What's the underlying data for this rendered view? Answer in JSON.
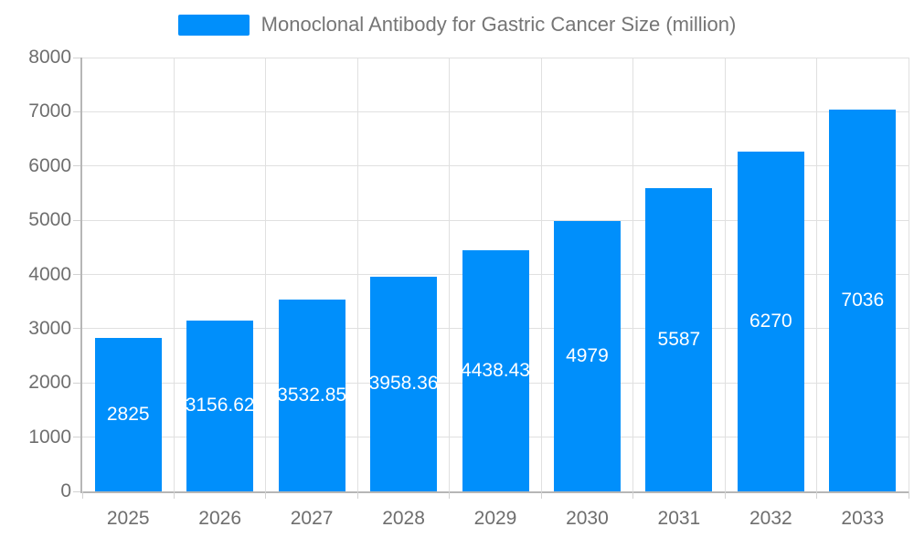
{
  "legend": {
    "label": "Monoclonal Antibody for Gastric Cancer Size (million)"
  },
  "colors": {
    "bar": "#008FFB",
    "grid": "#e0e0e0",
    "axis_line": "#b6b6b6",
    "tick": "#d2d2d2",
    "axis_label": "#6e6e6e",
    "legend_text": "#757575",
    "bar_label": "#ffffff",
    "background": "#ffffff"
  },
  "chart_data": {
    "type": "bar",
    "title": "Monoclonal Antibody for Gastric Cancer Size (million)",
    "categories": [
      "2025",
      "2026",
      "2027",
      "2028",
      "2029",
      "2030",
      "2031",
      "2032",
      "2033"
    ],
    "values": [
      2825,
      3156.62,
      3532.85,
      3958.36,
      4438.43,
      4979,
      5587,
      6270,
      7036
    ],
    "bar_labels": [
      "2825",
      "3156.62",
      "3532.85",
      "3958.36",
      "4438.43",
      "4979",
      "5587",
      "6270",
      "7036"
    ],
    "xlabel": "",
    "ylabel": "",
    "ylim": [
      0,
      8000
    ],
    "ytick_step": 1000,
    "ytick_labels": [
      "0",
      "1000",
      "2000",
      "3000",
      "4000",
      "5000",
      "6000",
      "7000",
      "8000"
    ],
    "grid": true,
    "legend_position": "top",
    "bar_label_position": "middle-center"
  }
}
